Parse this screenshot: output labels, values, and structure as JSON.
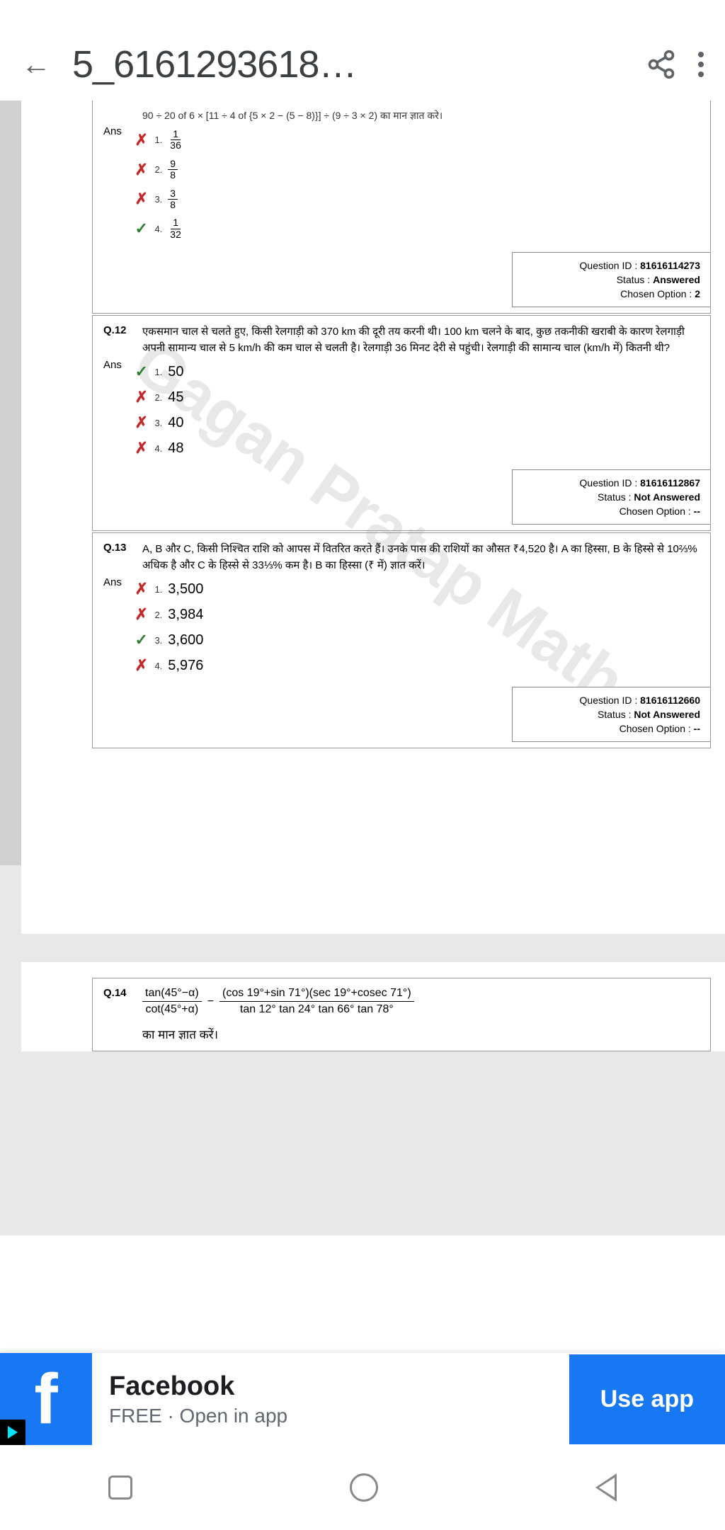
{
  "header": {
    "title": "5_6161293618…"
  },
  "watermark": "Gagan Pratap Math",
  "q11": {
    "truncated_expr": "90 ÷ 20 of 6 × [11 ÷ 4 of {5 × 2 − (5 − 8)}] ÷ (9 ÷ 3 × 2)  का मान ज्ञात करे।",
    "ans_label": "Ans",
    "options": [
      {
        "mark": "✗",
        "idx": "1.",
        "num": "1",
        "den": "36",
        "correct": false
      },
      {
        "mark": "✗",
        "idx": "2.",
        "num": "9",
        "den": "8",
        "correct": false
      },
      {
        "mark": "✗",
        "idx": "3.",
        "num": "3",
        "den": "8",
        "correct": false
      },
      {
        "mark": "✓",
        "idx": "4.",
        "num": "1",
        "den": "32",
        "correct": true
      }
    ],
    "meta": {
      "qid_label": "Question ID :",
      "qid": "81616114273",
      "status_label": "Status :",
      "status": "Answered",
      "chosen_label": "Chosen Option :",
      "chosen": "2"
    }
  },
  "q12": {
    "num": "Q.12",
    "text": "एकसमान चाल से चलते हुए, किसी रेलगाड़ी को 370 km की दूरी तय करनी थी। 100 km चलने के बाद, कुछ तकनीकी खराबी के कारण रेलगाड़ी अपनी सामान्य चाल से 5 km/h की कम चाल से चलती है। रेलगाड़ी 36 मिनट देरी से पहुंची। रेलगाड़ी की सामान्य चाल (km/h में) कितनी थी?",
    "ans_label": "Ans",
    "options": [
      {
        "mark": "✓",
        "idx": "1.",
        "val": "50",
        "correct": true
      },
      {
        "mark": "✗",
        "idx": "2.",
        "val": "45",
        "correct": false
      },
      {
        "mark": "✗",
        "idx": "3.",
        "val": "40",
        "correct": false
      },
      {
        "mark": "✗",
        "idx": "4.",
        "val": "48",
        "correct": false
      }
    ],
    "meta": {
      "qid_label": "Question ID :",
      "qid": "81616112867",
      "status_label": "Status :",
      "status": "Not Answered",
      "chosen_label": "Chosen Option :",
      "chosen": "--"
    }
  },
  "q13": {
    "num": "Q.13",
    "text": "A, B और C, किसी निश्चित राशि को आपस में वितरित करते हैं। उनके पास की राशियों का औसत ₹4,520 है। A का हिस्सा, B के हिस्से से 10⅔% अधिक है और C के हिस्से से 33⅓% कम है। B का हिस्सा (₹ में) ज्ञात करें।",
    "ans_label": "Ans",
    "options": [
      {
        "mark": "✗",
        "idx": "1.",
        "val": "3,500",
        "correct": false
      },
      {
        "mark": "✗",
        "idx": "2.",
        "val": "3,984",
        "correct": false
      },
      {
        "mark": "✓",
        "idx": "3.",
        "val": "3,600",
        "correct": true
      },
      {
        "mark": "✗",
        "idx": "4.",
        "val": "5,976",
        "correct": false
      }
    ],
    "meta": {
      "qid_label": "Question ID :",
      "qid": "81616112660",
      "status_label": "Status :",
      "status": "Not Answered",
      "chosen_label": "Chosen Option :",
      "chosen": "--"
    }
  },
  "q14": {
    "num": "Q.14",
    "f1n": "tan(45°−α)",
    "f1d": "cot(45°+α)",
    "minus": "−",
    "f2n": "(cos 19°+sin 71°)(sec 19°+cosec 71°)",
    "f2d": "tan 12° tan 24° tan 66° tan 78°",
    "hindi": "का मान ज्ञात करें।"
  },
  "banner": {
    "title": "Facebook",
    "subtitle": "FREE · Open in app",
    "button": "Use app"
  }
}
